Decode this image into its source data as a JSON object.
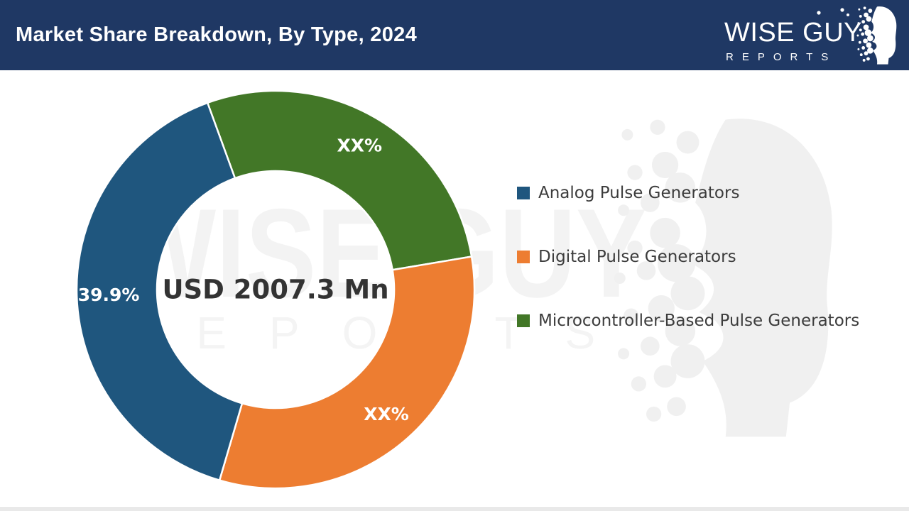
{
  "header": {
    "title": "Market Share Breakdown, By Type, 2024",
    "logo": {
      "line1": "WISE GUY",
      "line2": "REPORTS"
    }
  },
  "watermark": {
    "line1": "WISE GUY",
    "line2": "REPORTS"
  },
  "chart_data": {
    "type": "donut",
    "title": "Market Share Breakdown, By Type, 2024",
    "center_label": "USD 2007.3 Mn",
    "start_angle_deg": -20,
    "direction": "clockwise",
    "inner_radius_ratio": 0.6,
    "segments": [
      {
        "name": "Microcontroller-Based Pulse Generators",
        "value_pct": 27.9,
        "display_label": "XX%",
        "color": "#427727"
      },
      {
        "name": "Digital Pulse Generators",
        "value_pct": 32.2,
        "display_label": "XX%",
        "color": "#ed7d31"
      },
      {
        "name": "Analog Pulse Generators",
        "value_pct": 39.9,
        "display_label": "39.9%",
        "color": "#1f567e"
      }
    ],
    "legend": {
      "position": "right",
      "items": [
        {
          "label": "Analog Pulse Generators",
          "color": "#1f567e"
        },
        {
          "label": "Digital Pulse Generators",
          "color": "#ed7d31"
        },
        {
          "label": "Microcontroller-Based Pulse Generators",
          "color": "#427727"
        }
      ]
    }
  },
  "colors": {
    "header_bg": "#1f3864",
    "segment_label_text": "#ffffff",
    "center_text": "#333333",
    "legend_text": "#3c3c3c",
    "watermark": "#f2f2f2",
    "footer_bar": "#e9e9e9"
  }
}
